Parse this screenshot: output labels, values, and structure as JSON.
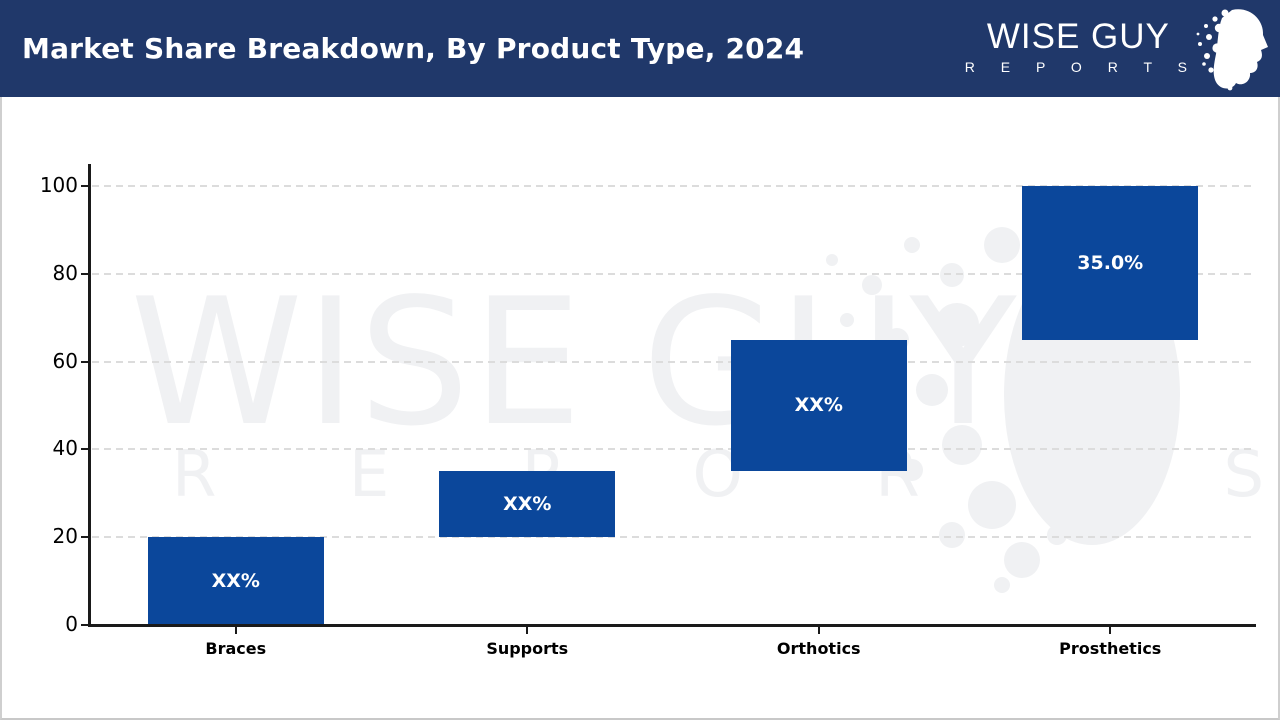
{
  "header": {
    "title": "Market Share Breakdown, By Product Type, 2024",
    "logo": {
      "wordmark": "WISE GUY",
      "subtext": "R E P O R T S"
    }
  },
  "watermark": {
    "line1": "WISE GUY",
    "line2": "R E P O R T S"
  },
  "chart_data": {
    "type": "bar",
    "subtype": "waterfall",
    "title": "Market Share Breakdown, By Product Type, 2024",
    "categories": [
      "Braces",
      "Supports",
      "Orthotics",
      "Prosthetics"
    ],
    "series": [
      {
        "name": "Market share (%)",
        "segments": [
          {
            "category": "Braces",
            "start": 0,
            "end": 20,
            "label": "XX%"
          },
          {
            "category": "Supports",
            "start": 20,
            "end": 35,
            "label": "XX%"
          },
          {
            "category": "Orthotics",
            "start": 35,
            "end": 65,
            "label": "XX%"
          },
          {
            "category": "Prosthetics",
            "start": 65,
            "end": 100,
            "label": "35.0%"
          }
        ]
      }
    ],
    "xlabel": "",
    "ylabel": "",
    "yticks": [
      0,
      20,
      40,
      60,
      80,
      100
    ],
    "ylim": [
      0,
      105
    ],
    "grid": "horizontal-dashed",
    "legend": "none",
    "bar_color": "#0b479b"
  },
  "colors": {
    "header_bg": "#20386a",
    "bar": "#0b479b",
    "gridline": "#dcdcdc",
    "watermark": "#f0f1f3",
    "text_on_dark": "#ffffff",
    "axis": "#1a1a1a"
  }
}
